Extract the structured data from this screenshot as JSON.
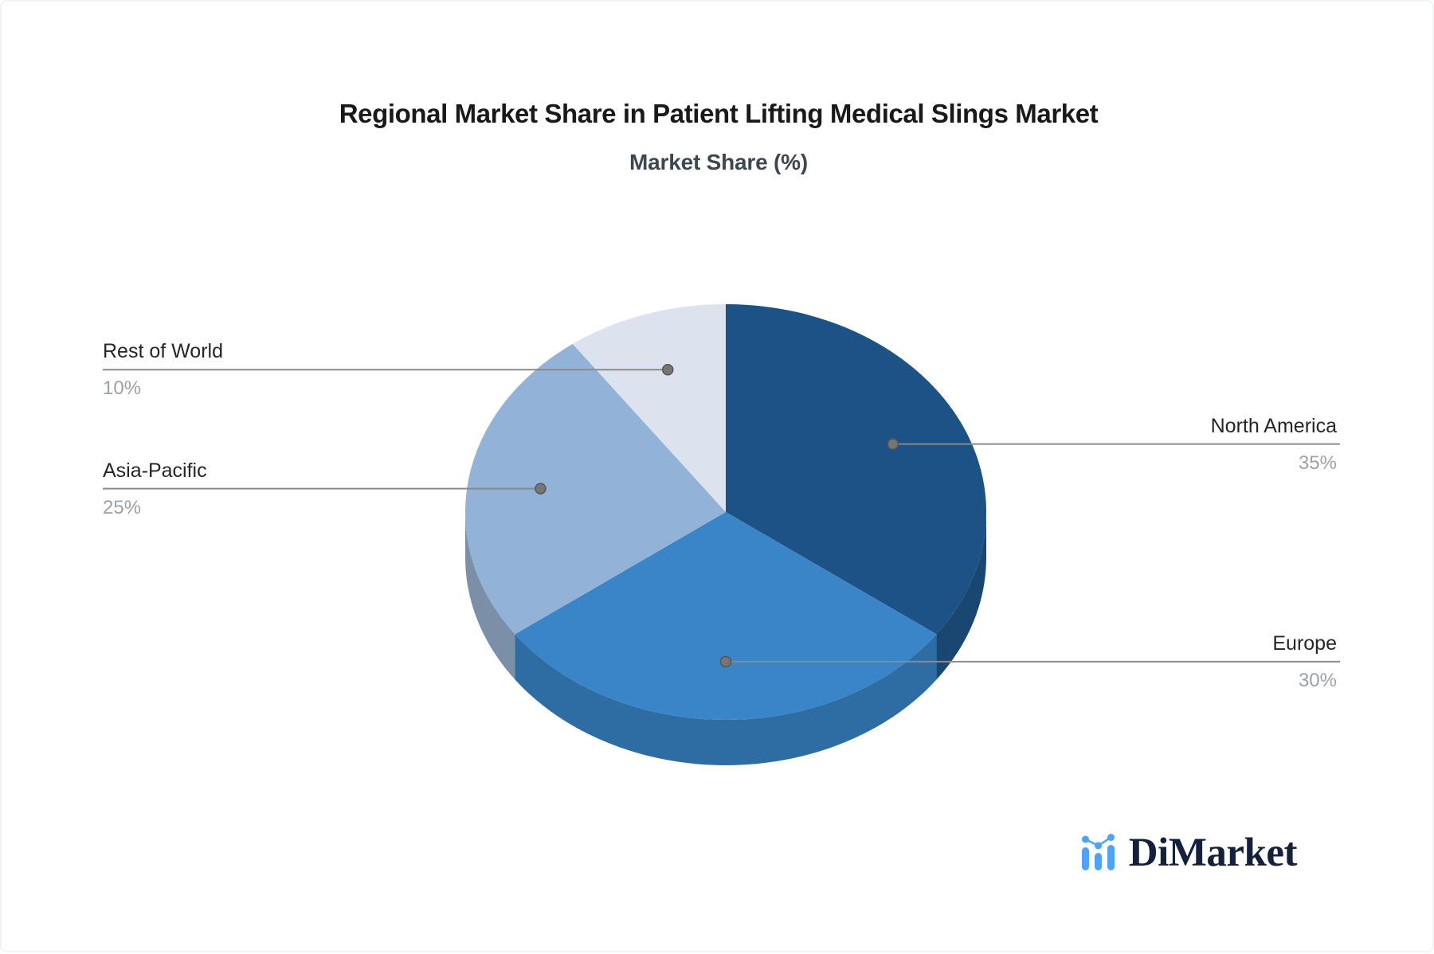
{
  "page": {
    "background_color": "#ffffff",
    "border_color": "#f1f4f7"
  },
  "header": {
    "title": "Regional Market Share in Patient Lifting Medical Slings Market",
    "subtitle": "Market Share (%)",
    "title_color": "#191919",
    "subtitle_color": "#3d4750"
  },
  "chart_data": {
    "type": "pie",
    "style": "3d",
    "title": "Regional Market Share in Patient Lifting Medical Slings Market",
    "subtitle": "Market Share (%)",
    "unit": "%",
    "start_angle_deg": 0,
    "direction": "clockwise",
    "legend_position": "callout-labels",
    "slices": [
      {
        "label": "North America",
        "value": 35,
        "pct_label": "35%",
        "color": "#1d5286",
        "side_color": "#1a4672"
      },
      {
        "label": "Europe",
        "value": 30,
        "pct_label": "30%",
        "color": "#3a85c8",
        "side_color": "#2e6da4"
      },
      {
        "label": "Asia-Pacific",
        "value": 25,
        "pct_label": "25%",
        "color": "#92b2d7",
        "side_color": "#7b90a8"
      },
      {
        "label": "Rest of World",
        "value": 10,
        "pct_label": "10%",
        "color": "#dce3ef",
        "side_color": "#bcc8d6"
      }
    ]
  },
  "callout_style": {
    "line_color": "#8a8a8a",
    "dot_fill": "#767676",
    "dot_stroke": "#555555",
    "name_color": "#262626",
    "pct_color": "#9ba1a8"
  },
  "logo": {
    "text": "DiMarket",
    "text_color": "#15203a",
    "icon": "bar-chart-logo-icon",
    "icon_color": "#4fa3f7"
  }
}
